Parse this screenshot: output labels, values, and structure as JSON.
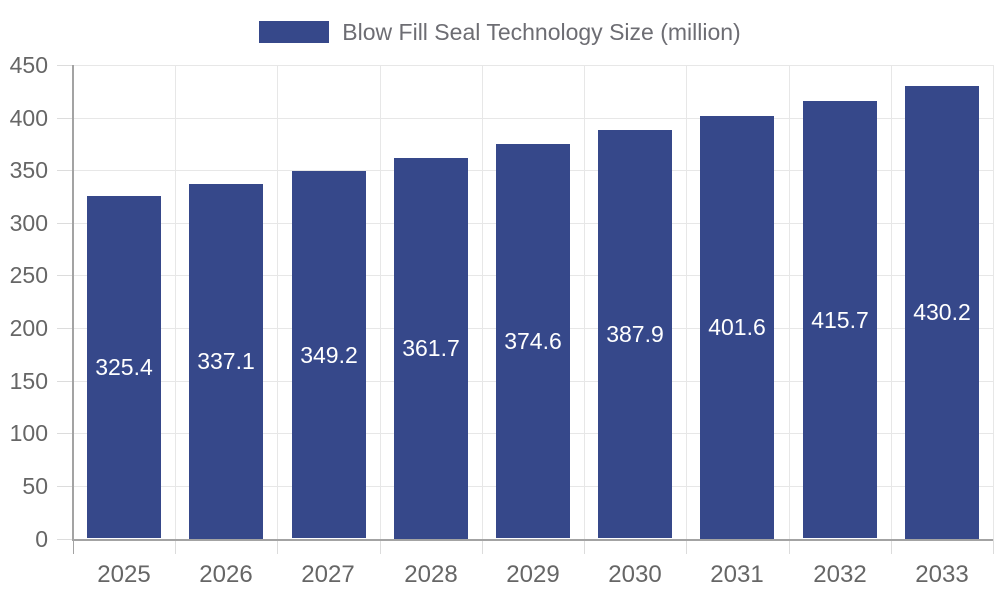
{
  "chart_data": {
    "type": "bar",
    "title": "Blow Fill Seal Technology Size (million)",
    "categories": [
      "2025",
      "2026",
      "2027",
      "2028",
      "2029",
      "2030",
      "2031",
      "2032",
      "2033"
    ],
    "values": [
      325.4,
      337.1,
      349.2,
      361.7,
      374.6,
      387.9,
      401.6,
      415.7,
      430.2
    ],
    "value_labels": [
      "325.4",
      "337.1",
      "349.2",
      "361.7",
      "374.6",
      "387.9",
      "401.6",
      "415.7",
      "430.2"
    ],
    "xlabel": "",
    "ylabel": "",
    "ylim": [
      0,
      450
    ],
    "yticks": [
      0,
      50,
      100,
      150,
      200,
      250,
      300,
      350,
      400,
      450
    ],
    "grid": true,
    "legend_position": "top-center",
    "legend_entries": [
      "Blow Fill Seal Technology Size (million)"
    ],
    "colors": {
      "bar": "#36488A",
      "axis": "#a3a3a3",
      "grid": "#e7e7e7",
      "tick": "#dcdcdc",
      "label_text": "#666666",
      "legend_text": "#6d6d73",
      "bar_label": "#ffffff",
      "background": "#ffffff"
    }
  }
}
